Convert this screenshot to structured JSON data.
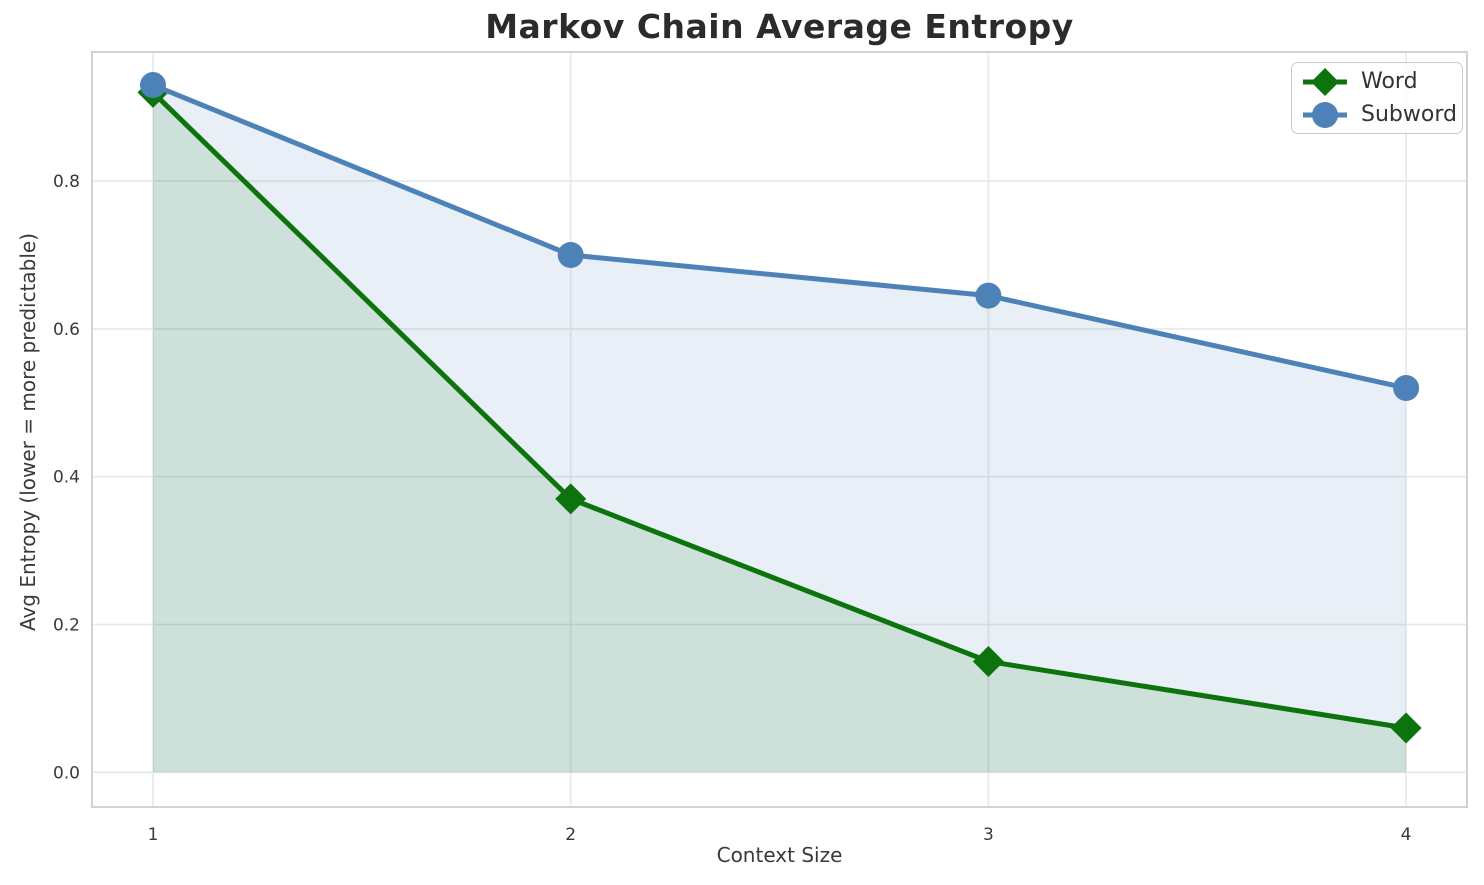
{
  "chart_data": {
    "type": "line",
    "title": "Markov Chain Average Entropy",
    "xlabel": "Context Size",
    "ylabel": "Avg Entropy (lower = more predictable)",
    "x": [
      1,
      2,
      3,
      4
    ],
    "xtick_labels": [
      "1",
      "2",
      "3",
      "4"
    ],
    "ytick_values": [
      0.0,
      0.2,
      0.4,
      0.6,
      0.8
    ],
    "ytick_labels": [
      "0.0",
      "0.2",
      "0.4",
      "0.6",
      "0.8"
    ],
    "xlim": [
      0.85,
      4.15
    ],
    "ylim": [
      -0.05,
      0.975
    ],
    "grid": true,
    "grid_color": "#e8e8e8",
    "border_color": "#d2d2d2",
    "legend_position": "upper right",
    "series": [
      {
        "name": "Word",
        "color": "#0d730d",
        "marker": "diamond",
        "values": [
          0.92,
          0.37,
          0.15,
          0.06
        ],
        "fill_rgba": "rgba(13,115,13,0.12)"
      },
      {
        "name": "Subword",
        "color": "#4d82b8",
        "marker": "circle",
        "values": [
          0.93,
          0.7,
          0.645,
          0.52
        ],
        "fill_rgba": "rgba(77,130,184,0.13)"
      }
    ]
  }
}
